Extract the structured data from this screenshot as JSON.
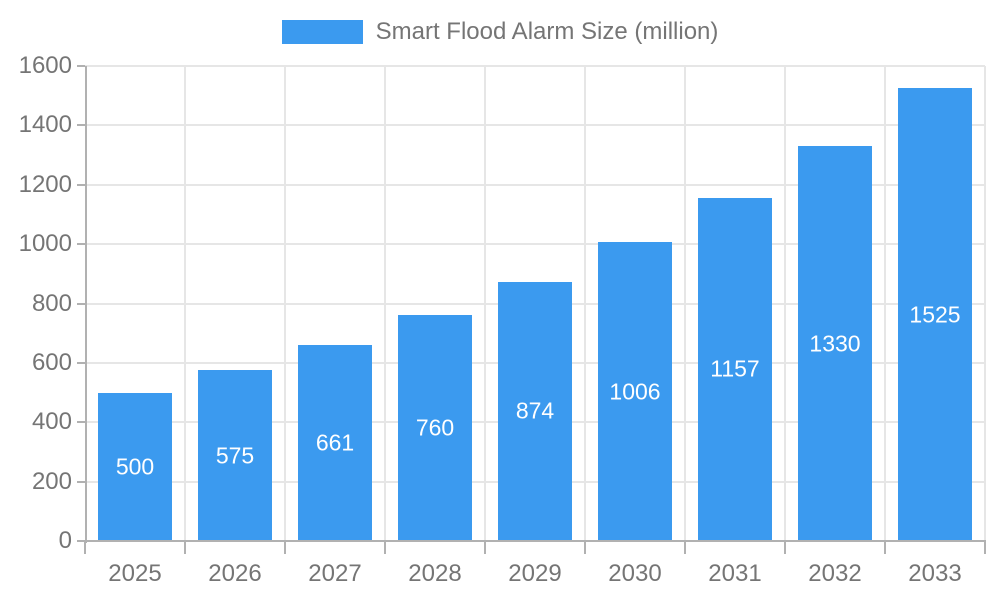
{
  "chart_data": {
    "type": "bar",
    "title": "Smart Flood Alarm Size (million)",
    "legend": [
      "Smart Flood Alarm Size (million)"
    ],
    "legend_position": "top-center",
    "categories": [
      "2025",
      "2026",
      "2027",
      "2028",
      "2029",
      "2030",
      "2031",
      "2032",
      "2033"
    ],
    "values": [
      500,
      575,
      661,
      760,
      874,
      1006,
      1157,
      1330,
      1525
    ],
    "xlabel": "",
    "ylabel": "",
    "ylim": [
      0,
      1600
    ],
    "yticks": [
      0,
      200,
      400,
      600,
      800,
      1000,
      1200,
      1400,
      1600
    ],
    "grid": true,
    "value_labels_position": "inside-center"
  },
  "colors": {
    "bar": "#3B9AEF",
    "grid_line": "#E6E6E6",
    "axis_line": "#B1B1B1",
    "tick_label": "#757575",
    "value_label": "#FFFFFF",
    "background": "#FFFFFF"
  }
}
